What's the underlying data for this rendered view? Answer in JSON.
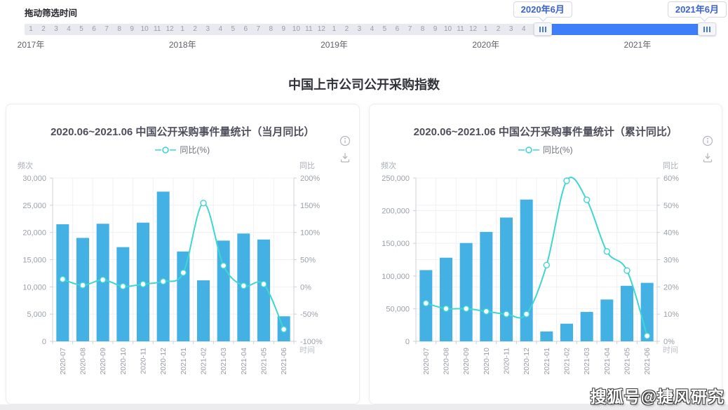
{
  "slider": {
    "label": "拖动筛选时间",
    "years": [
      {
        "label": "2017年",
        "months": 12
      },
      {
        "label": "2018年",
        "months": 12
      },
      {
        "label": "2019年",
        "months": 12
      },
      {
        "label": "2020年",
        "months": 12
      },
      {
        "label": "2021年",
        "months": 6
      }
    ],
    "selection": {
      "start_index": 41,
      "end_index": 54
    },
    "range_start_label": "2020年6月",
    "range_end_label": "2021年6月"
  },
  "page_title": "中国上市公司公开采购指数",
  "chart_data": [
    {
      "type": "bar+line",
      "title": "2020.06~2021.06 中国公开采购事件量统计（当月同比）",
      "legend": "同比(%)",
      "left_axis_name": "频次",
      "right_axis_name": "同比",
      "x_axis_name": "时间",
      "categories": [
        "2020-07",
        "2020-08",
        "2020-09",
        "2020-10",
        "2020-11",
        "2020-12",
        "2021-01",
        "2021-02",
        "2021-03",
        "2021-04",
        "2021-05",
        "2021-06"
      ],
      "bar_series": {
        "name": "频次",
        "values": [
          21500,
          19000,
          21600,
          17300,
          21800,
          27500,
          16500,
          11200,
          18500,
          19800,
          18700,
          4600
        ]
      },
      "line_series": {
        "name": "同比(%)",
        "values": [
          14,
          3,
          13,
          1,
          5,
          10,
          26,
          154,
          39,
          2,
          5,
          -78
        ]
      },
      "left_axis": {
        "min": 0,
        "max": 30000,
        "step": 5000
      },
      "right_axis": {
        "min": -100,
        "max": 200,
        "step": 50,
        "suffix": "%"
      }
    },
    {
      "type": "bar+line",
      "title": "2020.06~2021.06 中国公开采购事件量统计（累计同比）",
      "legend": "同比(%)",
      "left_axis_name": "频次",
      "right_axis_name": "同比",
      "x_axis_name": "时间",
      "categories": [
        "2020-07",
        "2020-08",
        "2020-09",
        "2020-10",
        "2020-11",
        "2020-12",
        "2021-01",
        "2021-02",
        "2021-03",
        "2021-04",
        "2021-05",
        "2021-06"
      ],
      "bar_series": {
        "name": "频次",
        "values": [
          109000,
          128000,
          150500,
          167500,
          189500,
          217000,
          15000,
          27000,
          45000,
          64000,
          85000,
          89500
        ]
      },
      "line_series": {
        "name": "同比(%)",
        "values": [
          14,
          12,
          12,
          11,
          10,
          10,
          28,
          59,
          52,
          33,
          26,
          2
        ]
      },
      "left_axis": {
        "min": 0,
        "max": 250000,
        "step": 50000
      },
      "right_axis": {
        "min": 0,
        "max": 60,
        "step": 10,
        "suffix": "%"
      }
    }
  ],
  "watermark": "搜狐号@捷风研究",
  "colors": {
    "bar": "#44b1e4",
    "line": "#3fd6d2",
    "selection": "#3e7ef9",
    "tooltip_text": "#3b63d1"
  }
}
